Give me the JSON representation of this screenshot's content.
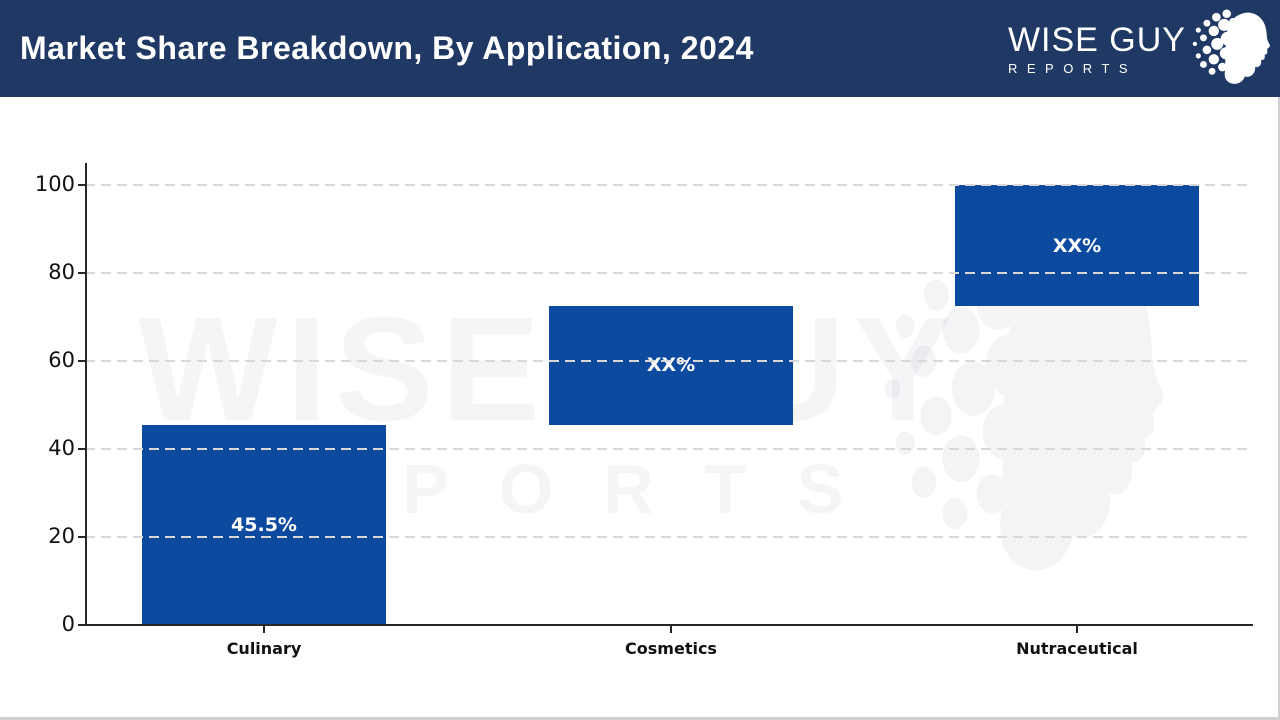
{
  "header": {
    "title": "Market Share Breakdown, By Application, 2024",
    "logo": {
      "line1": "WISE GUY",
      "line2": "REPORTS"
    }
  },
  "watermark": {
    "line1": "WISE GUY",
    "line2": "REPORTS"
  },
  "colors": {
    "header_bg": "#1f3864",
    "bar": "#0b4a9e",
    "bar_label_text": "#ffffff",
    "title_text": "#ffffff",
    "axis": "#262626",
    "grid": "#d9d9d9",
    "tick_text": "#111111"
  },
  "chart_data": {
    "type": "bar",
    "subtype": "floating-waterfall",
    "title": "Market Share Breakdown, By Application, 2024",
    "categories": [
      "Culinary",
      "Cosmetics",
      "Nutraceutical"
    ],
    "segments": [
      {
        "category": "Culinary",
        "start": 0,
        "end": 45.5,
        "label": "45.5%"
      },
      {
        "category": "Cosmetics",
        "start": 45.5,
        "end": 72.5,
        "label": "XX%"
      },
      {
        "category": "Nutraceutical",
        "start": 72.5,
        "end": 100,
        "label": "XX%"
      }
    ],
    "yticks": [
      0,
      20,
      40,
      60,
      80,
      100
    ],
    "ylim": [
      0,
      100
    ],
    "xlabel": "",
    "ylabel": "",
    "grid": "horizontal-dashed",
    "legend": "none"
  }
}
